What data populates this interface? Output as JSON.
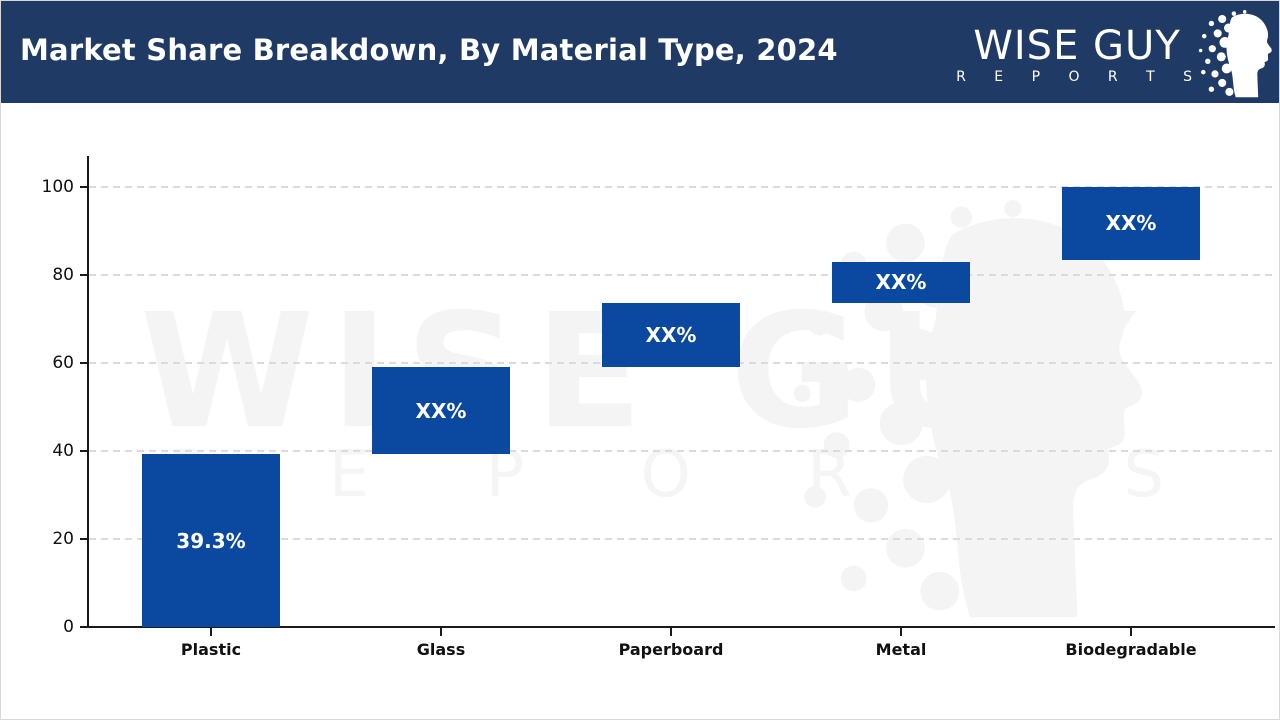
{
  "header": {
    "title": "Market Share Breakdown, By Material Type, 2024",
    "background_color": "#203A66",
    "logo": {
      "line1": "WISE GUY",
      "line2": "R E P O R T S"
    }
  },
  "watermark": {
    "line1": "WISE GUY",
    "line2": "R E P O R T S"
  },
  "chart_data": {
    "type": "bar",
    "subtype": "waterfall",
    "title": "Market Share Breakdown, By Material Type, 2024",
    "categories": [
      "Plastic",
      "Glass",
      "Paperboard",
      "Metal",
      "Biodegradable"
    ],
    "segments": [
      {
        "category": "Plastic",
        "start": 0,
        "end": 39.3,
        "label": "39.3%"
      },
      {
        "category": "Glass",
        "start": 39.3,
        "end": 59.0,
        "label": "XX%"
      },
      {
        "category": "Paperboard",
        "start": 59.0,
        "end": 73.7,
        "label": "XX%"
      },
      {
        "category": "Metal",
        "start": 73.7,
        "end": 83.0,
        "label": "XX%"
      },
      {
        "category": "Biodegradable",
        "start": 83.5,
        "end": 100,
        "label": "XX%"
      }
    ],
    "yticks": [
      0,
      20,
      40,
      60,
      80,
      100
    ],
    "ylim": [
      0,
      107
    ],
    "xlabel": "",
    "ylabel": "",
    "grid": "horizontal-dashed",
    "legend": "none",
    "bar_color": "#0B48A0",
    "bar_label_color": "#FFFFFF",
    "axis_color": "#1a1a1a",
    "grid_color": "#DBDBDB"
  }
}
